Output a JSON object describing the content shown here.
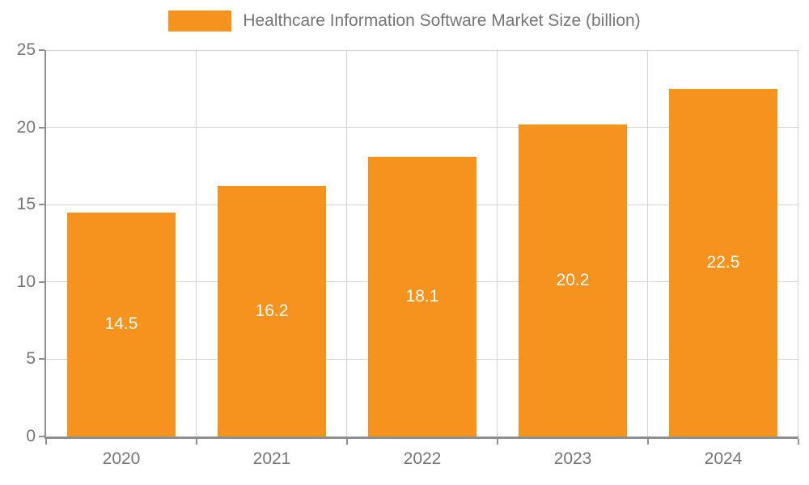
{
  "chart_data": {
    "type": "bar",
    "title": "Healthcare Information Software Market Size (billion)",
    "categories": [
      "2020",
      "2021",
      "2022",
      "2023",
      "2024"
    ],
    "values": [
      14.5,
      16.2,
      18.1,
      20.2,
      22.5
    ],
    "series": [
      {
        "name": "Healthcare Information Software Market Size (billion)",
        "values": [
          14.5,
          16.2,
          18.1,
          20.2,
          22.5
        ]
      }
    ],
    "xlabel": "",
    "ylabel": "",
    "ylim": [
      0,
      25
    ],
    "yticks": [
      0,
      5,
      10,
      15,
      20,
      25
    ],
    "grid": true,
    "legend_position": "top-center",
    "bar_labels_visible": true,
    "bar_label_position": "inside-center",
    "colors": {
      "bar": "#F6921E",
      "bar_label": "#FFFFFF",
      "axis_text": "#757575",
      "gridline": "#D4D4D4",
      "axis_line": "#8F8F8F",
      "background": "#FFFFFF"
    }
  },
  "legend": {
    "label": "Healthcare Information Software Market Size (billion)"
  }
}
